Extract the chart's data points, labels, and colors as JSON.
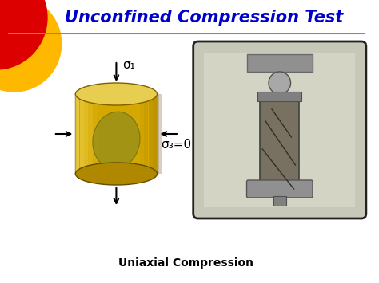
{
  "title": "Unconfined Compression Test",
  "title_color": "#0000CC",
  "title_fontsize": 15,
  "subtitle": "Uniaxial Compression",
  "subtitle_fontsize": 10,
  "subtitle_color": "#000000",
  "bg_color": "#FFFFFF",
  "separator_color": "#888888",
  "cylinder_body_color": "#D4A800",
  "cylinder_top_color": "#E8CE50",
  "cylinder_dark_color": "#A07800",
  "cylinder_bottom_color": "#B08800",
  "failure_plane_color": "#8A8820",
  "arrow_color": "#000000",
  "sigma1_label": "σ₁",
  "sigma3_label": "σ₃=0",
  "label_fontsize": 11,
  "red_circle_color": "#DD0000",
  "yellow_circle_color": "#FFB800",
  "photo_bg_color": "#C8C8B8",
  "photo_inner_color": "#D8D4C0",
  "photo_border_color": "#222222",
  "rock_color": "#787060",
  "metal_color": "#909090",
  "metal_dark": "#686868"
}
